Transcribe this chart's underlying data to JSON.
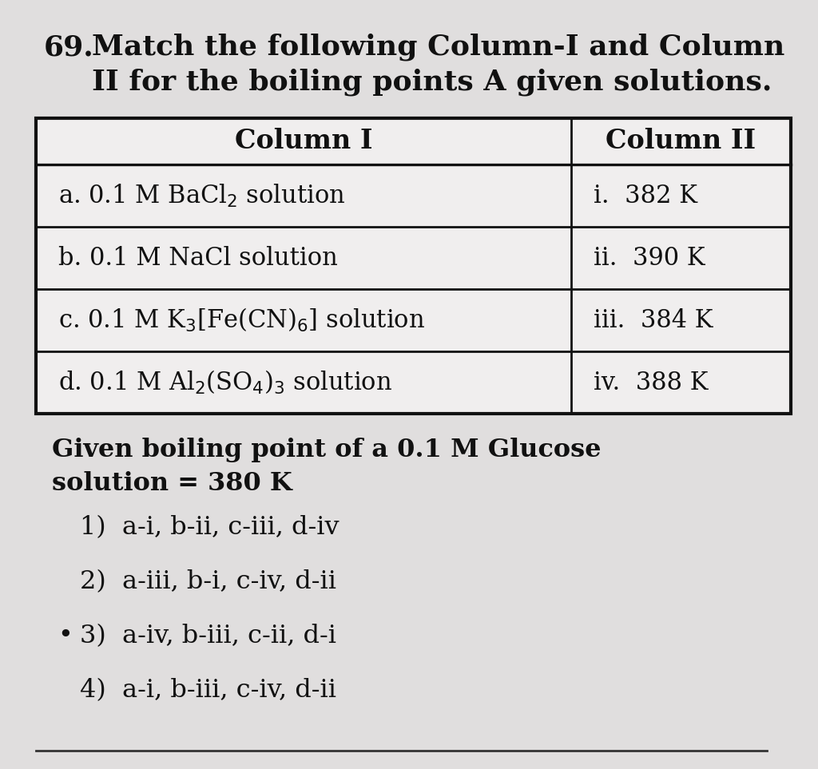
{
  "page_bg": "#e0dede",
  "table_bg": "#f0eeee",
  "question_number": "69.",
  "title_line1": "Match the following Column-I and Column",
  "title_line2": "II for the boiling points A given solutions.",
  "col1_header": "Column I",
  "col2_header": "Column II",
  "col1_rows": [
    "a. 0.1 M BaCl$_2$ solution",
    "b. 0.1 M NaCl solution",
    "c. 0.1 M K$_3$[Fe(CN)$_6$] solution",
    "d. 0.1 M Al$_2$(SO$_4$)$_3$ solution"
  ],
  "col2_rows": [
    "i.  382 K",
    "ii.  390 K",
    "iii.  384 K",
    "iv.  388 K"
  ],
  "given_text_line1": "Given boiling point of a 0.1 M Glucose",
  "given_text_line2": "solution = 380 K",
  "opt1": "1)  a-i, b-ii, c-iii, d-iv",
  "opt2": "2)  a-iii, b-i, c-iv, d-ii",
  "opt3": "3)  a-iv, b-iii, c-ii, d-i",
  "opt4": "4)  a-i, b-iii, c-iv, d-ii",
  "title_fontsize": 26,
  "table_header_fontsize": 24,
  "table_row_fontsize": 22,
  "option_fontsize": 23,
  "given_fontsize": 23,
  "text_color": "#111111",
  "border_color": "#111111",
  "border_lw": 2.0
}
